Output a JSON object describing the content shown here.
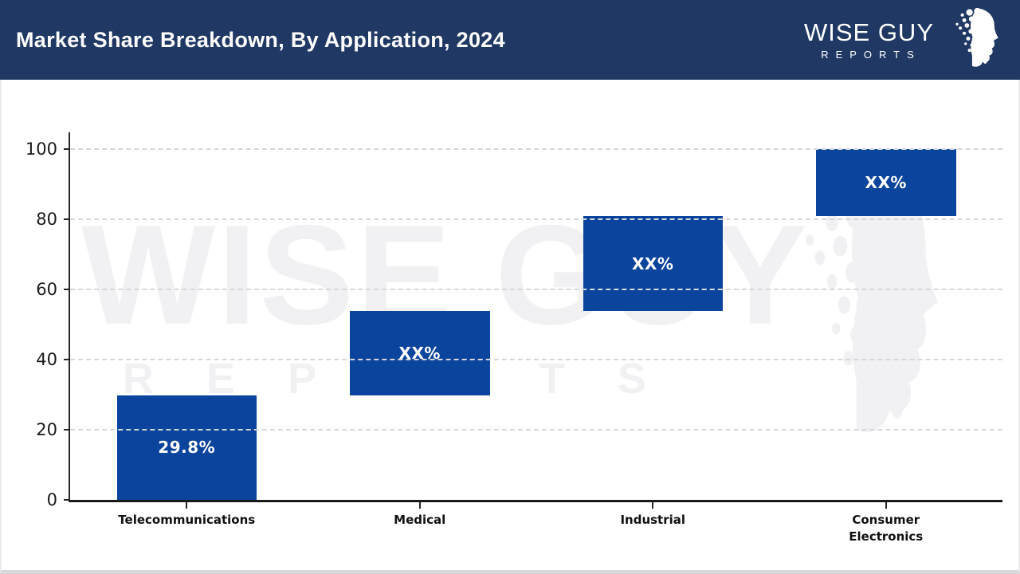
{
  "header": {
    "title": "Market Share Breakdown, By Application, 2024",
    "bg_color": "#203864",
    "logo": {
      "wordmark": "WISE GUY",
      "subtext": "REPORTS"
    }
  },
  "watermark": {
    "wordmark": "WISE GUY",
    "subtext": "REPORTS"
  },
  "chart_data": {
    "type": "bar",
    "subtype": "waterfall",
    "title": "Market Share Breakdown, By Application, 2024",
    "xlabel": "",
    "ylabel": "",
    "ylim": [
      0,
      104
    ],
    "y_ticks": [
      0,
      20,
      40,
      60,
      80,
      100
    ],
    "grid": {
      "horizontal": true,
      "style": "dashed",
      "color": "#d7d7da"
    },
    "bar_color": "#0b449c",
    "bar_label_color": "#ffffff",
    "categories": [
      "Telecommunications",
      "Medical",
      "Industrial",
      "Consumer\nElectronics"
    ],
    "segments": [
      {
        "category": "Telecommunications",
        "start": 0,
        "end": 29.8,
        "value": 29.8,
        "label": "29.8%"
      },
      {
        "category": "Medical",
        "start": 29.8,
        "end": 53.8,
        "value": 24.0,
        "label": "XX%"
      },
      {
        "category": "Industrial",
        "start": 53.8,
        "end": 80.9,
        "value": 27.1,
        "label": "XX%"
      },
      {
        "category": "Consumer Electronics",
        "start": 80.9,
        "end": 100.0,
        "value": 19.1,
        "label": "XX%"
      }
    ]
  }
}
